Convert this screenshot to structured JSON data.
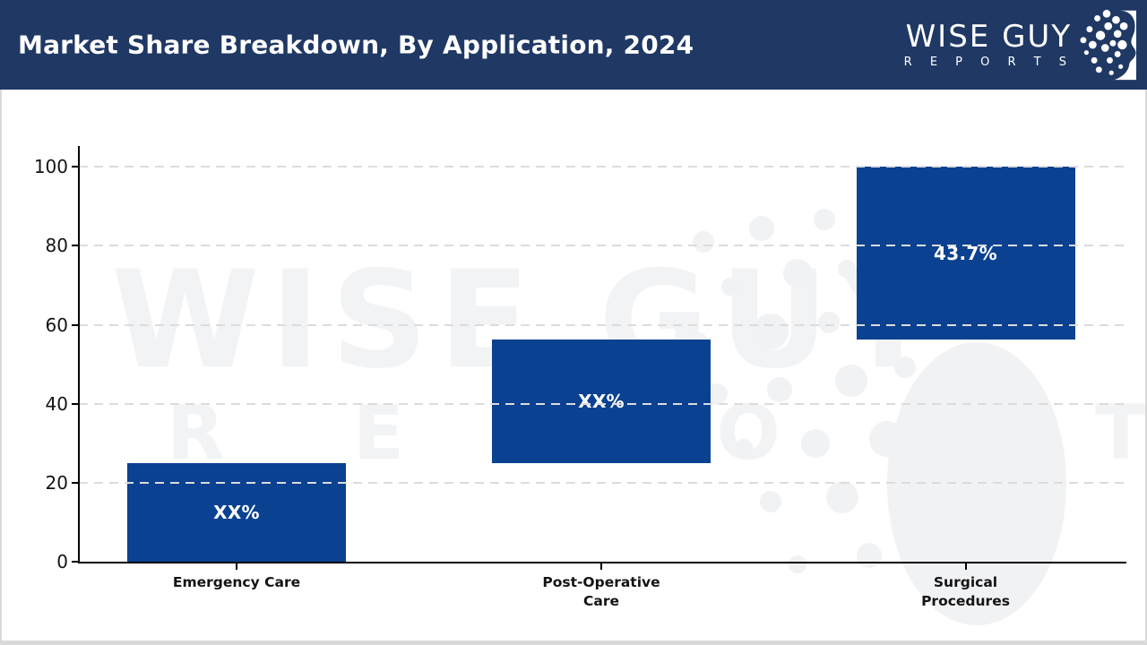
{
  "header": {
    "title": "Market Share Breakdown, By Application, 2024",
    "logo": {
      "line1": "WISE GUY",
      "line2": "R E P O R T S",
      "icon": "dotted-head-profile"
    }
  },
  "watermark": {
    "line1": "WISE GUY",
    "line2": "R E P O R T S"
  },
  "chart_data": {
    "type": "bar",
    "subtype": "waterfall",
    "title": "Market Share Breakdown, By Application, 2024",
    "categories": [
      [
        "Emergency Care"
      ],
      [
        "Post-Operative",
        "Care"
      ],
      [
        "Surgical",
        "Procedures"
      ]
    ],
    "series": [
      {
        "name": "Market Share (%)",
        "segments": [
          {
            "category": "Emergency Care",
            "start": 0,
            "end": 25,
            "label": "XX%"
          },
          {
            "category": "Post-Operative Care",
            "start": 25,
            "end": 56.3,
            "label": "XX%"
          },
          {
            "category": "Surgical Procedures",
            "start": 56.3,
            "end": 100,
            "label": "43.7%"
          }
        ]
      }
    ],
    "ylim": [
      0,
      100
    ],
    "yticks": [
      0,
      20,
      40,
      60,
      80,
      100
    ],
    "grid": "horizontal-dashed",
    "legend": "none"
  },
  "colors": {
    "header_bg": "#1f3864",
    "header_text": "#ffffff",
    "bar": "#0a4191",
    "bar_label": "#ffffff",
    "gridline": "#dcdcdc",
    "axis": "#000000",
    "text": "#141414",
    "watermark": "#f2f3f5",
    "page_border": "#d9d9d9"
  }
}
